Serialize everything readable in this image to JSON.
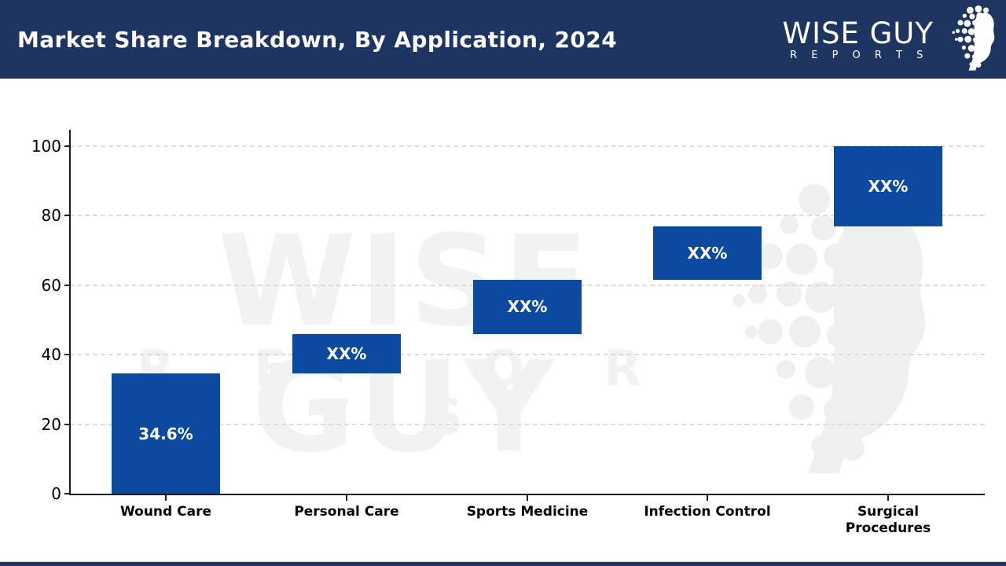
{
  "header": {
    "title": "Market Share Breakdown, By Application, 2024",
    "logo": {
      "wordmark": "WISE GUY",
      "subtext": "R E P O R T S"
    }
  },
  "watermark": {
    "wordmark": "WISE GUY",
    "subtext": "R E P O R T S"
  },
  "chart_data": {
    "type": "bar",
    "subtype": "waterfall",
    "title": "Market Share Breakdown, By Application, 2024",
    "categories": [
      "Wound Care",
      "Personal Care",
      "Sports Medicine",
      "Infection Control",
      "Surgical Procedures"
    ],
    "bars": [
      {
        "category": "Wound Care",
        "start": 0,
        "end": 34.6,
        "label": "34.6%"
      },
      {
        "category": "Personal Care",
        "start": 34.6,
        "end": 46,
        "label": "XX%"
      },
      {
        "category": "Sports Medicine",
        "start": 46,
        "end": 61.5,
        "label": "XX%"
      },
      {
        "category": "Infection Control",
        "start": 61.5,
        "end": 77,
        "label": "XX%"
      },
      {
        "category": "Surgical Procedures",
        "start": 77,
        "end": 100,
        "label": "XX%"
      }
    ],
    "xlabel": "",
    "ylabel": "",
    "yticks": [
      0,
      20,
      40,
      60,
      80,
      100
    ],
    "ylim": [
      0,
      105
    ],
    "grid": "horizontal-dashed",
    "legend": "none",
    "bar_color": "#0b4aa0",
    "bar_label_color": "#ffffff"
  },
  "colors": {
    "header_bg": "#1e3461",
    "footer_bg": "#1e3461",
    "bar": "#0b4aa0",
    "gridline": "#dcdcdc",
    "axis": "#1c1c1c",
    "watermark": "#f2f2f2"
  }
}
